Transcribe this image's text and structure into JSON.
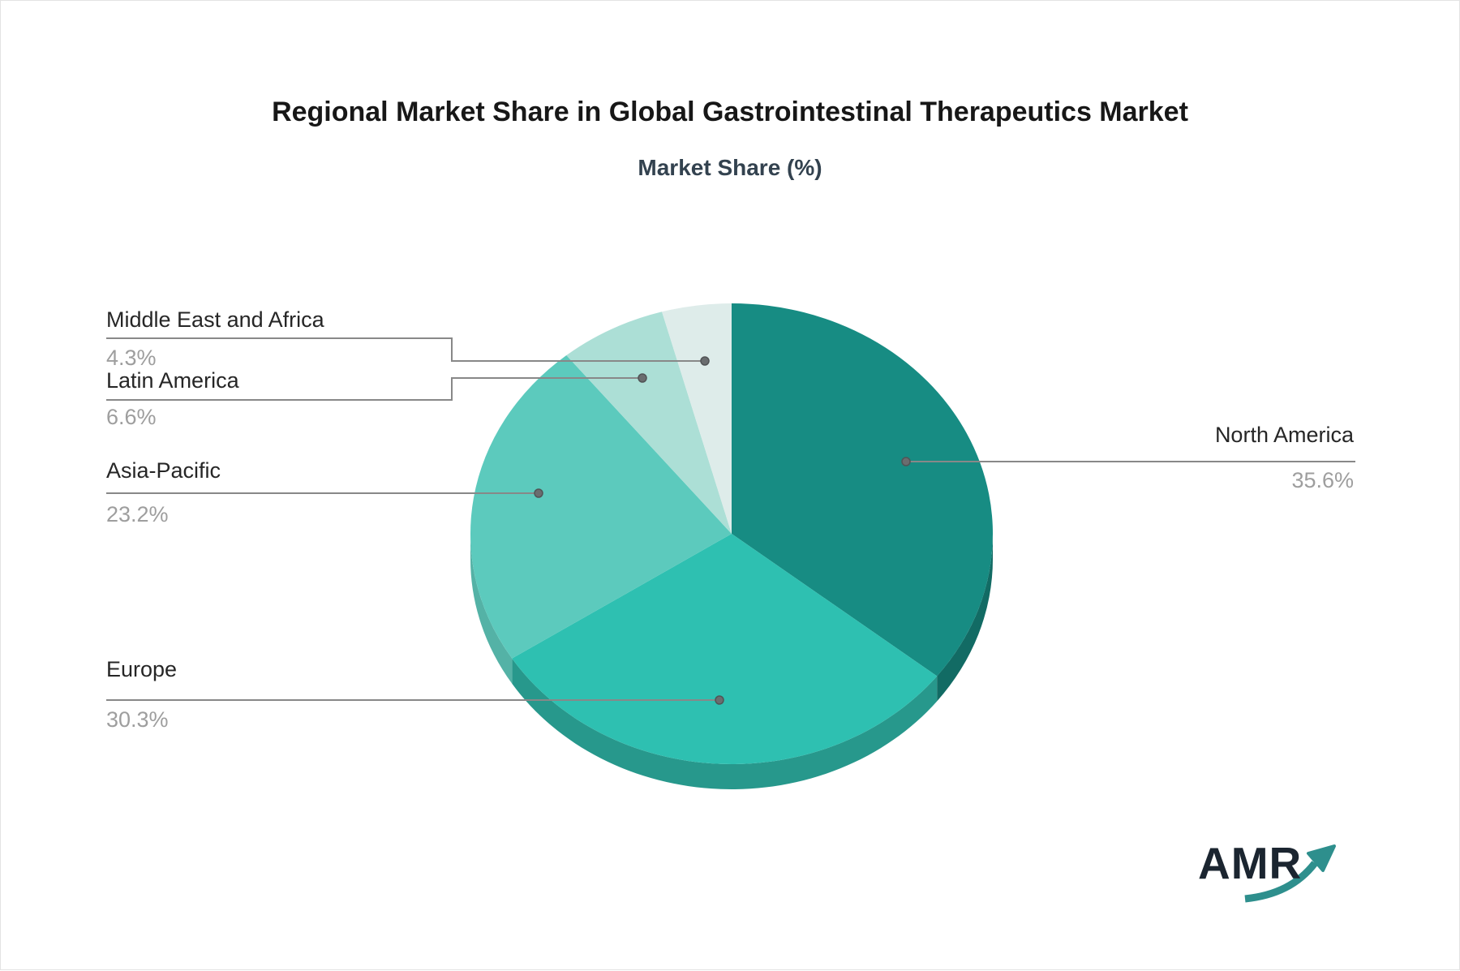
{
  "header": {
    "title": "Regional Market Share in Global Gastrointestinal Therapeutics Market",
    "subtitle": "Market Share (%)"
  },
  "logo": {
    "text": "AMR"
  },
  "chart_data": {
    "type": "pie",
    "style": "3d",
    "title": "Regional Market Share in Global Gastrointestinal Therapeutics Market",
    "subtitle": "Market Share (%)",
    "unit": "%",
    "start_angle_deg": 0,
    "direction": "clockwise",
    "legend_position": "callout-labels",
    "slices": [
      {
        "label": "North America",
        "value": 35.6,
        "pct_label": "35.6%",
        "color": "#178C83",
        "side_color": "#126B64",
        "callout_side": "right"
      },
      {
        "label": "Europe",
        "value": 30.3,
        "pct_label": "30.3%",
        "color": "#2EC0B1",
        "side_color": "#27988C",
        "callout_side": "left"
      },
      {
        "label": "Asia-Pacific",
        "value": 23.2,
        "pct_label": "23.2%",
        "color": "#5CCABD",
        "side_color": "#54B2A6",
        "callout_side": "left"
      },
      {
        "label": "Latin America",
        "value": 6.6,
        "pct_label": "6.6%",
        "color": "#ACDFD6",
        "side_color": "#8FC9BF",
        "callout_side": "left"
      },
      {
        "label": "Middle East and Africa",
        "value": 4.3,
        "pct_label": "4.3%",
        "color": "#DEECEA",
        "side_color": "#C2D8D4",
        "callout_side": "left"
      }
    ],
    "label_text_color": "#262626",
    "pct_text_color": "#9E9E9E",
    "leader_line_color": "#888888",
    "accent_colors": {
      "title": "#171717",
      "subtitle": "#33424F",
      "logo_text": "#1B2530",
      "logo_arrow": "#2E8F8D"
    }
  }
}
